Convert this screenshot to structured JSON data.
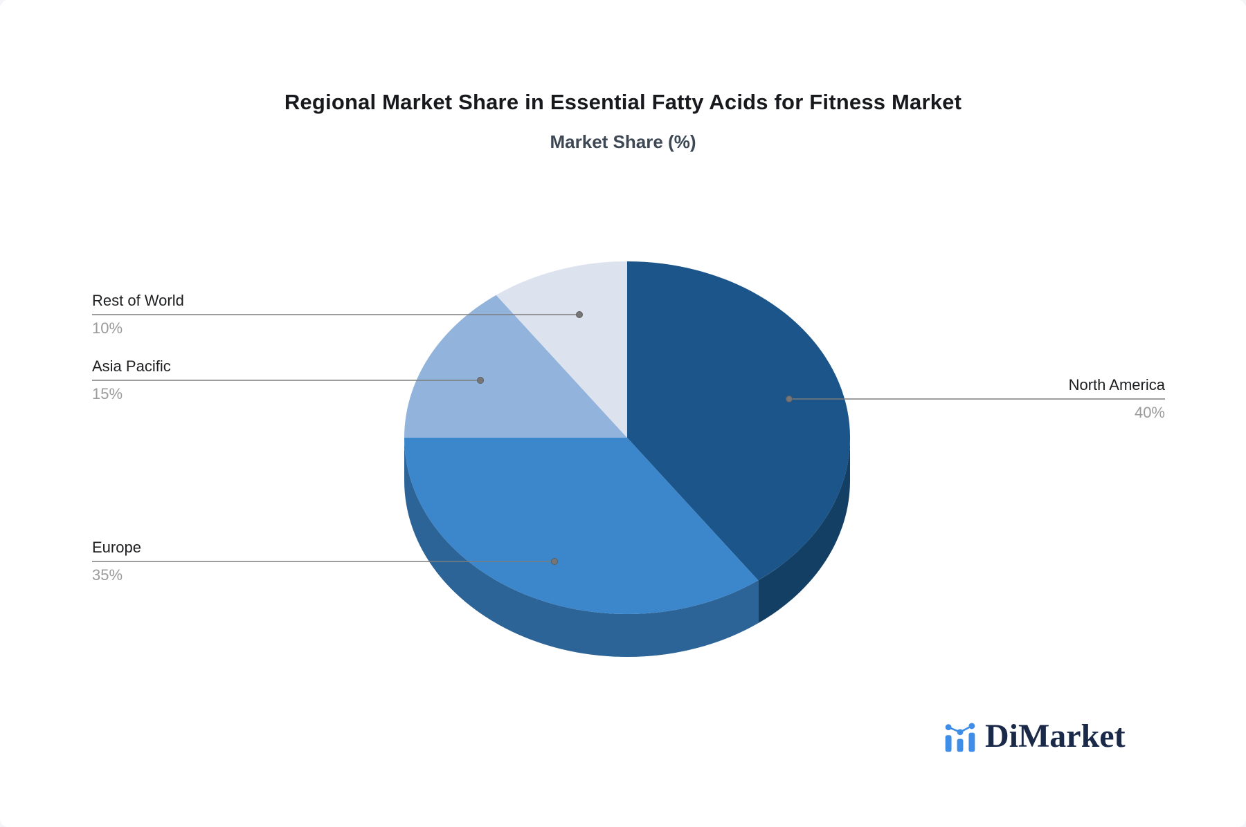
{
  "page": {
    "title": "Regional Market Share in Essential Fatty Acids for Fitness Market",
    "subtitle": "Market Share (%)"
  },
  "chart_data": {
    "type": "pie",
    "style": "3d",
    "title": "Regional Market Share in Essential Fatty Acids for Fitness Market",
    "subtitle": "Market Share (%)",
    "unit": "%",
    "start_angle_deg": 0,
    "direction": "clockwise",
    "legend_position": "callout-labels",
    "slices": [
      {
        "label": "North America",
        "value": 40,
        "display": "40%",
        "color": "#1B5589"
      },
      {
        "label": "Europe",
        "value": 35,
        "display": "35%",
        "color": "#3C87CC"
      },
      {
        "label": "Asia Pacific",
        "value": 15,
        "display": "15%",
        "color": "#92B4DC"
      },
      {
        "label": "Rest of World",
        "value": 10,
        "display": "10%",
        "color": "#DDE3EE"
      }
    ]
  },
  "branding": {
    "logo_text": "DiMarket",
    "logo_icon": "bar-chart-icon",
    "icon_color": "#3E8EE8",
    "text_color": "#1B2948"
  }
}
